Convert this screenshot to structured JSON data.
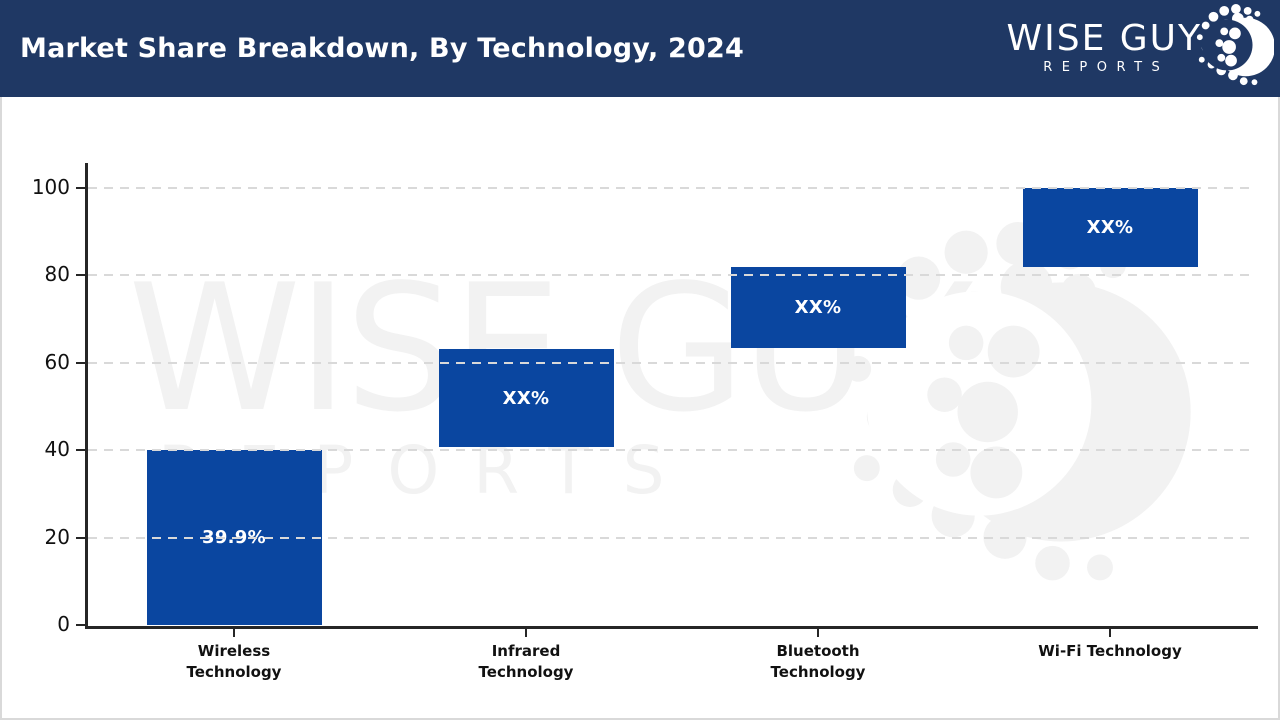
{
  "header": {
    "title": "Market Share Breakdown, By Technology, 2024",
    "logo": {
      "line1": "WISE GUY",
      "line2": "REPORTS",
      "head_icon": "dotted-face-profile"
    }
  },
  "watermark": {
    "line1": "WISE GUY",
    "line2": "REPORTS"
  },
  "colors": {
    "header_bg": "#1f3864",
    "title_text": "#ffffff",
    "bar": "#0a46a0",
    "bar_label": "#ffffff",
    "grid": "#d9d9d9",
    "axis": "#262626",
    "tick_label": "#111111",
    "watermark": "#f2f2f2",
    "frame_border": "#d9d9d9"
  },
  "chart_data": {
    "type": "bar",
    "variant": "floating-waterfall",
    "title": "Market Share Breakdown, By Technology, 2024",
    "xlabel": "",
    "ylabel": "",
    "ylim": [
      0,
      106
    ],
    "yticks": [
      0,
      20,
      40,
      60,
      80,
      100
    ],
    "grid": {
      "show": true,
      "axis": "y",
      "style": "dashed",
      "color": "#d9d9d9",
      "drawn_above_bars": true
    },
    "legend": {
      "show": false
    },
    "categories": [
      "Wireless Technology",
      "Infrared Technology",
      "Bluetooth Technology",
      "Wi-Fi Technology"
    ],
    "category_label_lines": [
      [
        "Wireless",
        "Technology"
      ],
      [
        "Infrared",
        "Technology"
      ],
      [
        "Bluetooth",
        "Technology"
      ],
      [
        "Wi-Fi Technology"
      ]
    ],
    "bars": [
      {
        "category": "Wireless Technology",
        "start": 0.0,
        "end": 39.9,
        "label": "39.9%"
      },
      {
        "category": "Infrared Technology",
        "start": 40.7,
        "end": 63.0,
        "label": "XX%"
      },
      {
        "category": "Bluetooth Technology",
        "start": 63.3,
        "end": 81.9,
        "label": "XX%"
      },
      {
        "category": "Wi-Fi Technology",
        "start": 81.9,
        "end": 100.0,
        "label": "XX%"
      }
    ],
    "bar_color": "#0a46a0"
  }
}
